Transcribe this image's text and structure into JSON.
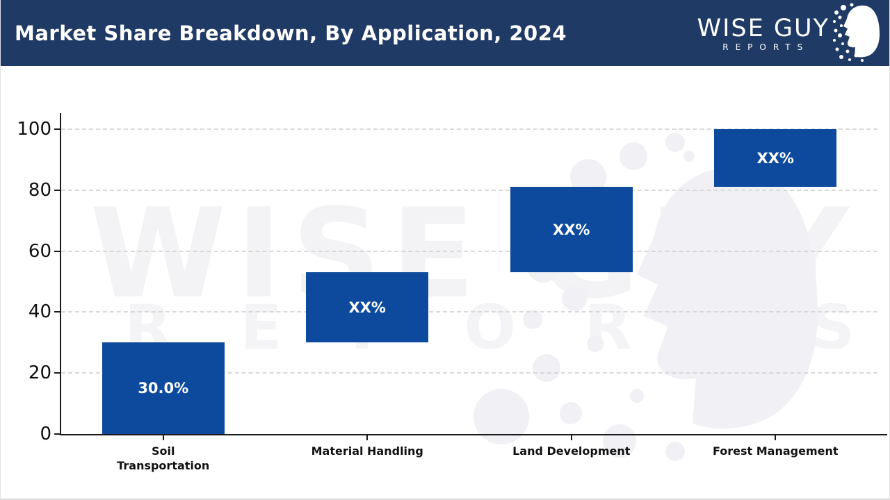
{
  "header": {
    "title": "Market Share Breakdown, By Application, 2024",
    "logo": {
      "line1": "WISE GUY",
      "line2": "REPORTS"
    }
  },
  "watermark": {
    "line1": "WISE GUY",
    "line2": "R E P O R T S"
  },
  "chart_data": {
    "type": "bar",
    "subtype": "waterfall",
    "title": "Market Share Breakdown, By Application, 2024",
    "categories": [
      "Soil\nTransportation",
      "Material Handling",
      "Land Development",
      "Forest Management"
    ],
    "segments": [
      {
        "category": "Soil Transportation",
        "start": 0,
        "end": 30,
        "value": 30,
        "label": "30.0%"
      },
      {
        "category": "Material Handling",
        "start": 30,
        "end": 53,
        "value": 23,
        "label": "XX%"
      },
      {
        "category": "Land Development",
        "start": 53,
        "end": 81,
        "value": 28,
        "label": "XX%"
      },
      {
        "category": "Forest Management",
        "start": 81,
        "end": 100,
        "value": 19,
        "label": "XX%"
      }
    ],
    "ylim": [
      0,
      100
    ],
    "yticks": [
      0,
      20,
      40,
      60,
      80,
      100
    ],
    "xlabel": "",
    "ylabel": "",
    "legend": "none",
    "grid": {
      "axis": "y",
      "style": "dashed"
    },
    "colors": {
      "bar": "#0d4a9e",
      "header_bg": "#203a66",
      "grid": "#d8d8d8",
      "axis": "#1a1a1a",
      "bar_label": "#ffffff",
      "watermark": "#f3f3f6"
    }
  }
}
